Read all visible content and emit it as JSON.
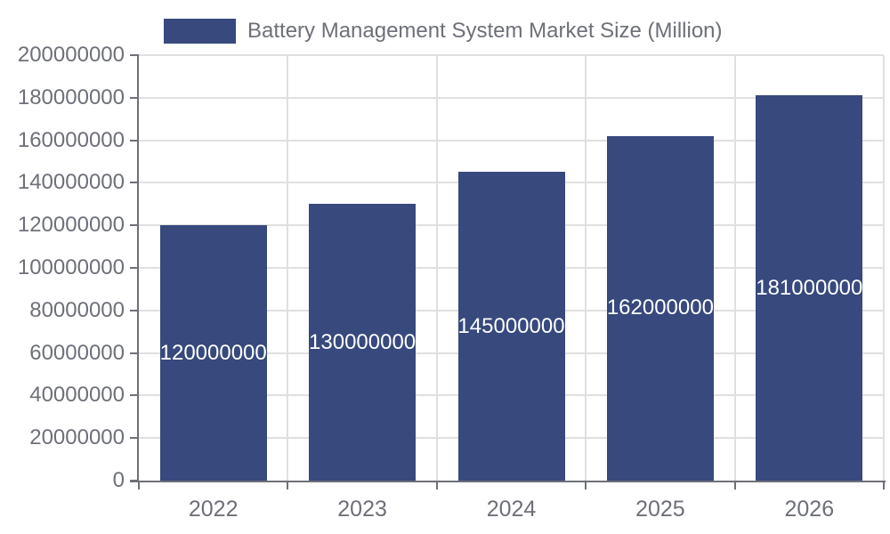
{
  "chart_data": {
    "type": "bar",
    "title": "Battery Management System Market Size (Million)",
    "categories": [
      "2022",
      "2023",
      "2024",
      "2025",
      "2026"
    ],
    "values": [
      120000000,
      130000000,
      145000000,
      162000000,
      181000000
    ],
    "value_labels": [
      "120000000",
      "130000000",
      "145000000",
      "162000000",
      "181000000"
    ],
    "xlabel": "",
    "ylabel": "",
    "ylim": [
      0,
      200000000
    ],
    "ytick_step": 20000000,
    "ytick_labels": [
      "0",
      "20000000",
      "40000000",
      "60000000",
      "80000000",
      "100000000",
      "120000000",
      "140000000",
      "160000000",
      "180000000",
      "200000000"
    ],
    "grid": true,
    "legend": {
      "position": "top",
      "label": "Battery Management System Market Size (Million)"
    },
    "colors": {
      "bar": "#37497d",
      "bar_label": "#ffffff",
      "axis_text": "#6e7079",
      "legend_text": "#6e7079",
      "axis_line": "#6e7079",
      "grid_line": "#e0e0e0",
      "background": "#ffffff"
    }
  }
}
